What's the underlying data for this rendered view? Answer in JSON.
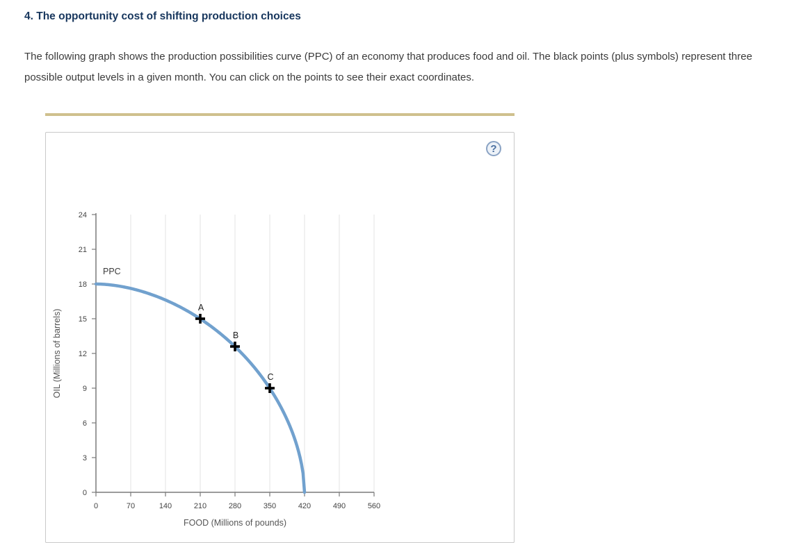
{
  "page": {
    "heading": "4. The opportunity cost of shifting production choices",
    "paragraph": "The following graph shows the production possibilities curve (PPC) of an economy that produces food and oil. The black points (plus symbols) represent three possible output levels in a given month. You can click on the points to see their exact coordinates."
  },
  "panel": {
    "help_label": "?"
  },
  "chart_data": {
    "type": "line",
    "title": "",
    "xlabel": "FOOD (Millions of pounds)",
    "ylabel": "OIL (Millions of barrels)",
    "xlim": [
      0,
      560
    ],
    "ylim": [
      0,
      24
    ],
    "xticks": [
      0,
      70,
      140,
      210,
      280,
      350,
      420,
      490,
      560
    ],
    "yticks": [
      0,
      3,
      6,
      9,
      12,
      15,
      18,
      21,
      24
    ],
    "grid": "vertical",
    "legend_position": "none",
    "curve": {
      "label": "PPC",
      "shape": "superellipse",
      "exponent": 1.82,
      "x_intercept": 420,
      "y_intercept": 18,
      "color": "#71a1ce",
      "label_pos": [
        14,
        18.85
      ]
    },
    "points": [
      {
        "label": "A",
        "x": 210,
        "y": 15
      },
      {
        "label": "B",
        "x": 280,
        "y": 12.6
      },
      {
        "label": "C",
        "x": 350,
        "y": 9
      }
    ],
    "colors": {
      "grid": "#e3e3e3",
      "axis": "#7a7a7a",
      "point": "#000000"
    }
  }
}
